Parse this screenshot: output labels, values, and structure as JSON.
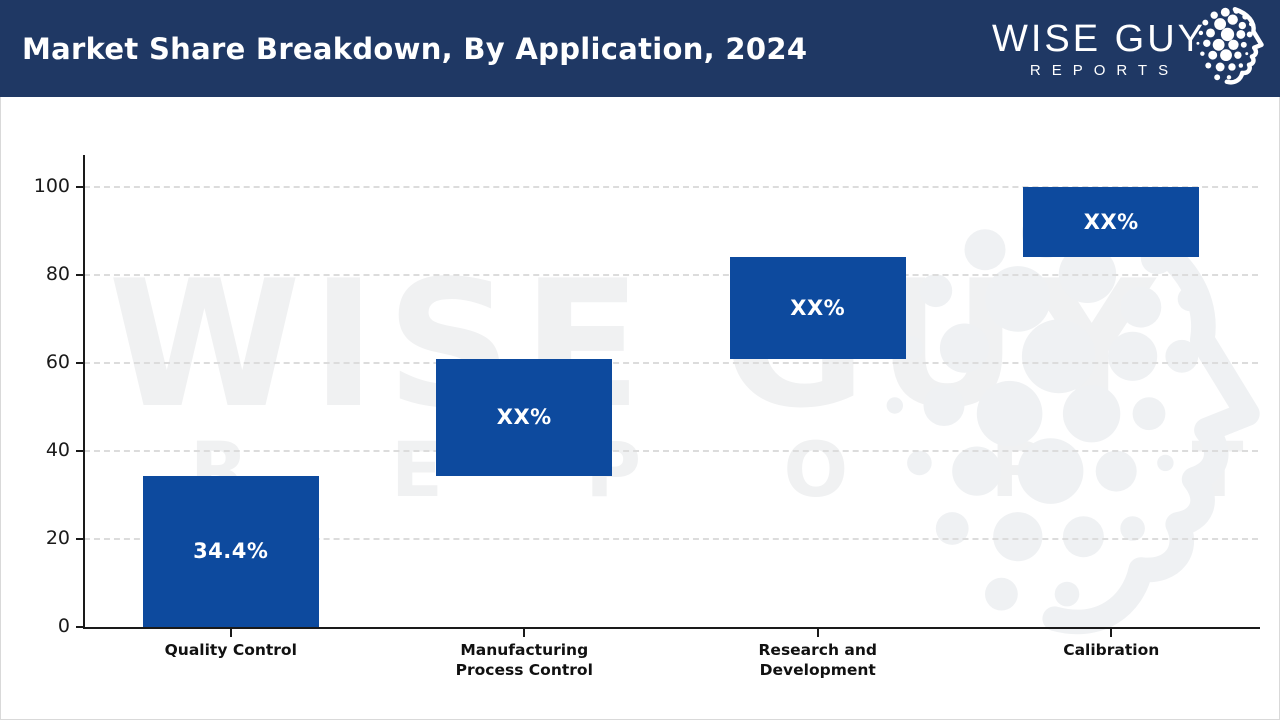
{
  "header": {
    "title": "Market Share Breakdown, By Application, 2024",
    "bg_color": "#1f3864",
    "logo": {
      "line1": "WISE GUY",
      "line2": "REPORTS",
      "icon": "dotted-face-profile"
    }
  },
  "watermark": {
    "line1": "WISE GUY",
    "line2": "R E P O R T S",
    "color": "#f0f1f2"
  },
  "chart_data": {
    "type": "bar",
    "subtype": "waterfall",
    "title": "Market Share Breakdown, By Application, 2024",
    "xlabel": "",
    "ylabel": "",
    "ylim": [
      0,
      100
    ],
    "yticks": [
      0,
      20,
      40,
      60,
      80,
      100
    ],
    "grid": "horizontal-dashed",
    "legend": "none",
    "bar_color": "#0d4a9e",
    "value_label_color": "#ffffff",
    "categories": [
      [
        "Quality Control"
      ],
      [
        "Manufacturing",
        "Process Control"
      ],
      [
        "Research and",
        "Development"
      ],
      [
        "Calibration"
      ]
    ],
    "segments": [
      {
        "category": "Quality Control",
        "start": 0,
        "end": 34.4,
        "label": "34.4%"
      },
      {
        "category": "Manufacturing Process Control",
        "start": 34.4,
        "end": 61,
        "label": "XX%"
      },
      {
        "category": "Research and Development",
        "start": 61,
        "end": 84,
        "label": "XX%"
      },
      {
        "category": "Calibration",
        "start": 84,
        "end": 100,
        "label": "XX%"
      }
    ]
  }
}
